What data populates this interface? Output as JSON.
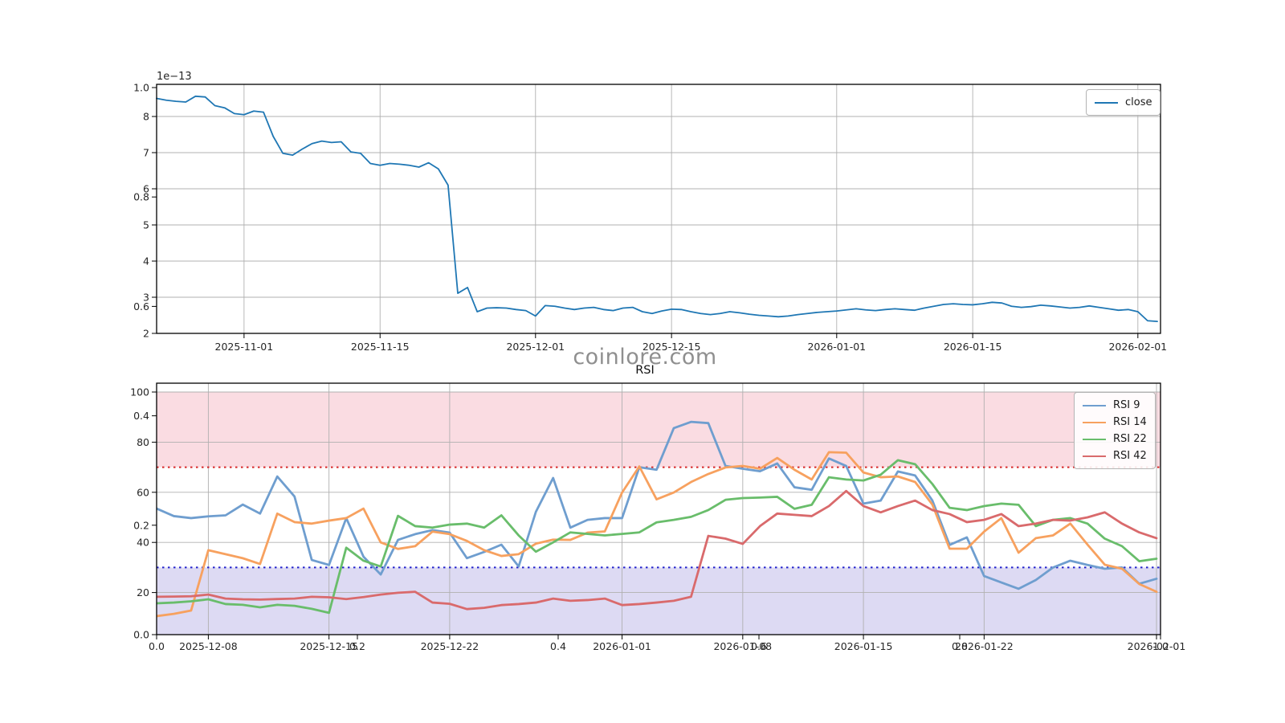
{
  "watermark": "coinlore.com",
  "figure_axis": {
    "x_tick_labels": [
      "0.0",
      "0.2",
      "0.4",
      "0.6",
      "0.8",
      "1.0"
    ],
    "y_tick_labels": [
      "0.0",
      "0.2",
      "0.4",
      "0.6",
      "0.8",
      "1.0"
    ]
  },
  "colors": {
    "grid": "#b0b0b0",
    "spine": "#000000",
    "tick_text": "#262626",
    "overbought_band": "#fadce2",
    "oversold_band": "#dddaf3",
    "overbought_line": "#d62728",
    "oversold_line": "#2222cc"
  },
  "chart_data": [
    {
      "type": "line",
      "title": "",
      "y_offset_label": "1e−13",
      "y_ticks": [
        8,
        7,
        6,
        5,
        4,
        3,
        2
      ],
      "ylim_1e13": [
        2,
        8.9
      ],
      "grid": true,
      "legend_position": "upper right",
      "x_ticks": [
        {
          "label": "2025-11-01",
          "day": 9
        },
        {
          "label": "2025-11-15",
          "day": 23
        },
        {
          "label": "2025-12-01",
          "day": 39
        },
        {
          "label": "2025-12-15",
          "day": 53
        },
        {
          "label": "2026-01-01",
          "day": 70
        },
        {
          "label": "2026-01-15",
          "day": 84
        },
        {
          "label": "2026-02-01",
          "day": 101
        }
      ],
      "x_span_days": 103,
      "series": [
        {
          "name": "close",
          "color": "#1f77b4",
          "width": 1.8,
          "values": [
            8.5,
            8.45,
            8.42,
            8.4,
            8.56,
            8.54,
            8.3,
            8.24,
            8.08,
            8.05,
            8.15,
            8.12,
            7.45,
            6.98,
            6.93,
            7.1,
            7.25,
            7.32,
            7.28,
            7.3,
            7.02,
            6.98,
            6.7,
            6.65,
            6.7,
            6.68,
            6.65,
            6.6,
            6.72,
            6.55,
            6.1,
            3.11,
            3.27,
            2.6,
            2.7,
            2.71,
            2.7,
            2.66,
            2.63,
            2.48,
            2.77,
            2.75,
            2.7,
            2.66,
            2.7,
            2.72,
            2.66,
            2.63,
            2.7,
            2.72,
            2.6,
            2.55,
            2.62,
            2.67,
            2.66,
            2.6,
            2.55,
            2.52,
            2.55,
            2.6,
            2.57,
            2.53,
            2.5,
            2.48,
            2.46,
            2.48,
            2.52,
            2.55,
            2.58,
            2.6,
            2.62,
            2.65,
            2.68,
            2.65,
            2.63,
            2.66,
            2.68,
            2.66,
            2.64,
            2.7,
            2.75,
            2.8,
            2.82,
            2.8,
            2.79,
            2.82,
            2.86,
            2.84,
            2.75,
            2.72,
            2.74,
            2.78,
            2.76,
            2.73,
            2.7,
            2.72,
            2.76,
            2.72,
            2.68,
            2.64,
            2.66,
            2.6,
            2.35,
            2.33
          ]
        }
      ]
    },
    {
      "type": "line",
      "title": "RSI",
      "y_ticks": [
        100,
        80,
        60,
        40,
        20
      ],
      "ylim": [
        0,
        100
      ],
      "grid": true,
      "legend_position": "upper right",
      "overbought_level": 70,
      "oversold_level": 30,
      "bands": [
        {
          "from": 70,
          "to": 100,
          "color": "#fadce2"
        },
        {
          "from": 0,
          "to": 30,
          "color": "#dddaf3"
        }
      ],
      "x_ticks": [
        {
          "label": "2025-12-08",
          "day": 3
        },
        {
          "label": "2025-12-15",
          "day": 10
        },
        {
          "label": "2025-12-22",
          "day": 17
        },
        {
          "label": "2026-01-01",
          "day": 27
        },
        {
          "label": "2026-01-08",
          "day": 34
        },
        {
          "label": "2026-01-15",
          "day": 41
        },
        {
          "label": "2026-01-22",
          "day": 48
        },
        {
          "label": "2026-02-01",
          "day": 58
        }
      ],
      "x_span_days": 58,
      "series": [
        {
          "name": "RSI 9",
          "color": "#6f9ecf",
          "width": 2.8,
          "values": [
            53.5,
            50.5,
            49.7,
            50.4,
            50.8,
            55.1,
            51.5,
            66.3,
            58.3,
            33.0,
            31.0,
            49.7,
            34.3,
            27.2,
            41.0,
            43.3,
            44.9,
            43.9,
            33.7,
            36.2,
            39.1,
            30.4,
            52.2,
            65.7,
            45.9,
            49.0,
            49.7,
            49.7,
            70.0,
            69.0,
            85.6,
            88.1,
            87.6,
            70.5,
            69.4,
            68.4,
            71.5,
            62.0,
            61.0,
            73.5,
            70.5,
            55.5,
            56.7,
            68.3,
            66.7,
            56.7,
            39.0,
            42.0,
            26.6,
            24.0,
            21.5,
            25.0,
            30.0,
            32.7,
            31.0,
            29.5,
            30.0,
            23.5,
            25.5
          ]
        },
        {
          "name": "RSI 14",
          "color": "#f7a15f",
          "width": 2.8,
          "values": [
            10.6,
            11.5,
            12.8,
            36.9,
            35.3,
            33.7,
            31.4,
            51.5,
            48.1,
            47.5,
            48.7,
            49.7,
            53.5,
            40.0,
            37.4,
            38.5,
            44.3,
            43.3,
            40.6,
            36.9,
            34.6,
            35.3,
            39.5,
            41.1,
            41.0,
            43.9,
            44.4,
            59.9,
            70.3,
            57.2,
            59.9,
            64.1,
            67.3,
            69.9,
            70.5,
            69.4,
            73.7,
            69.0,
            65.1,
            76.0,
            75.8,
            67.9,
            66.0,
            66.3,
            64.1,
            55.1,
            37.5,
            37.5,
            44.3,
            49.7,
            35.9,
            41.7,
            42.8,
            47.5,
            39.1,
            31.1,
            29.5,
            23.4,
            20.3
          ]
        },
        {
          "name": "RSI 22",
          "color": "#69bd6b",
          "width": 2.8,
          "values": [
            15.7,
            16.0,
            16.5,
            17.3,
            15.4,
            15.1,
            14.1,
            15.1,
            14.7,
            13.5,
            11.9,
            37.9,
            32.7,
            30.4,
            50.6,
            46.5,
            45.9,
            47.1,
            47.5,
            45.9,
            50.8,
            42.8,
            36.3,
            40.0,
            44.0,
            43.4,
            42.8,
            43.4,
            44.0,
            48.0,
            49.0,
            50.2,
            52.9,
            57.0,
            57.7,
            57.9,
            58.2,
            53.4,
            55.0,
            66.0,
            65.1,
            64.7,
            67.0,
            72.8,
            71.2,
            63.3,
            53.8,
            52.9,
            54.5,
            55.5,
            55.0,
            46.5,
            49.0,
            49.7,
            47.5,
            41.5,
            38.5,
            32.5,
            33.5
          ]
        },
        {
          "name": "RSI 42",
          "color": "#d96a6c",
          "width": 2.8,
          "values": [
            18.3,
            18.4,
            18.5,
            19.2,
            17.6,
            17.3,
            17.2,
            17.4,
            17.6,
            18.3,
            18.1,
            17.4,
            18.2,
            19.2,
            19.9,
            20.3,
            16.0,
            15.5,
            13.4,
            13.9,
            15.0,
            15.4,
            16.0,
            17.6,
            16.7,
            17.0,
            17.6,
            15.0,
            15.4,
            16.0,
            16.7,
            18.3,
            42.6,
            41.5,
            39.4,
            46.5,
            51.5,
            51.0,
            50.5,
            54.5,
            60.5,
            54.5,
            52.0,
            54.5,
            56.7,
            52.9,
            51.3,
            48.1,
            49.0,
            51.3,
            46.5,
            47.5,
            49.0,
            48.7,
            50.0,
            52.0,
            47.5,
            44.0,
            41.7
          ]
        }
      ]
    }
  ]
}
